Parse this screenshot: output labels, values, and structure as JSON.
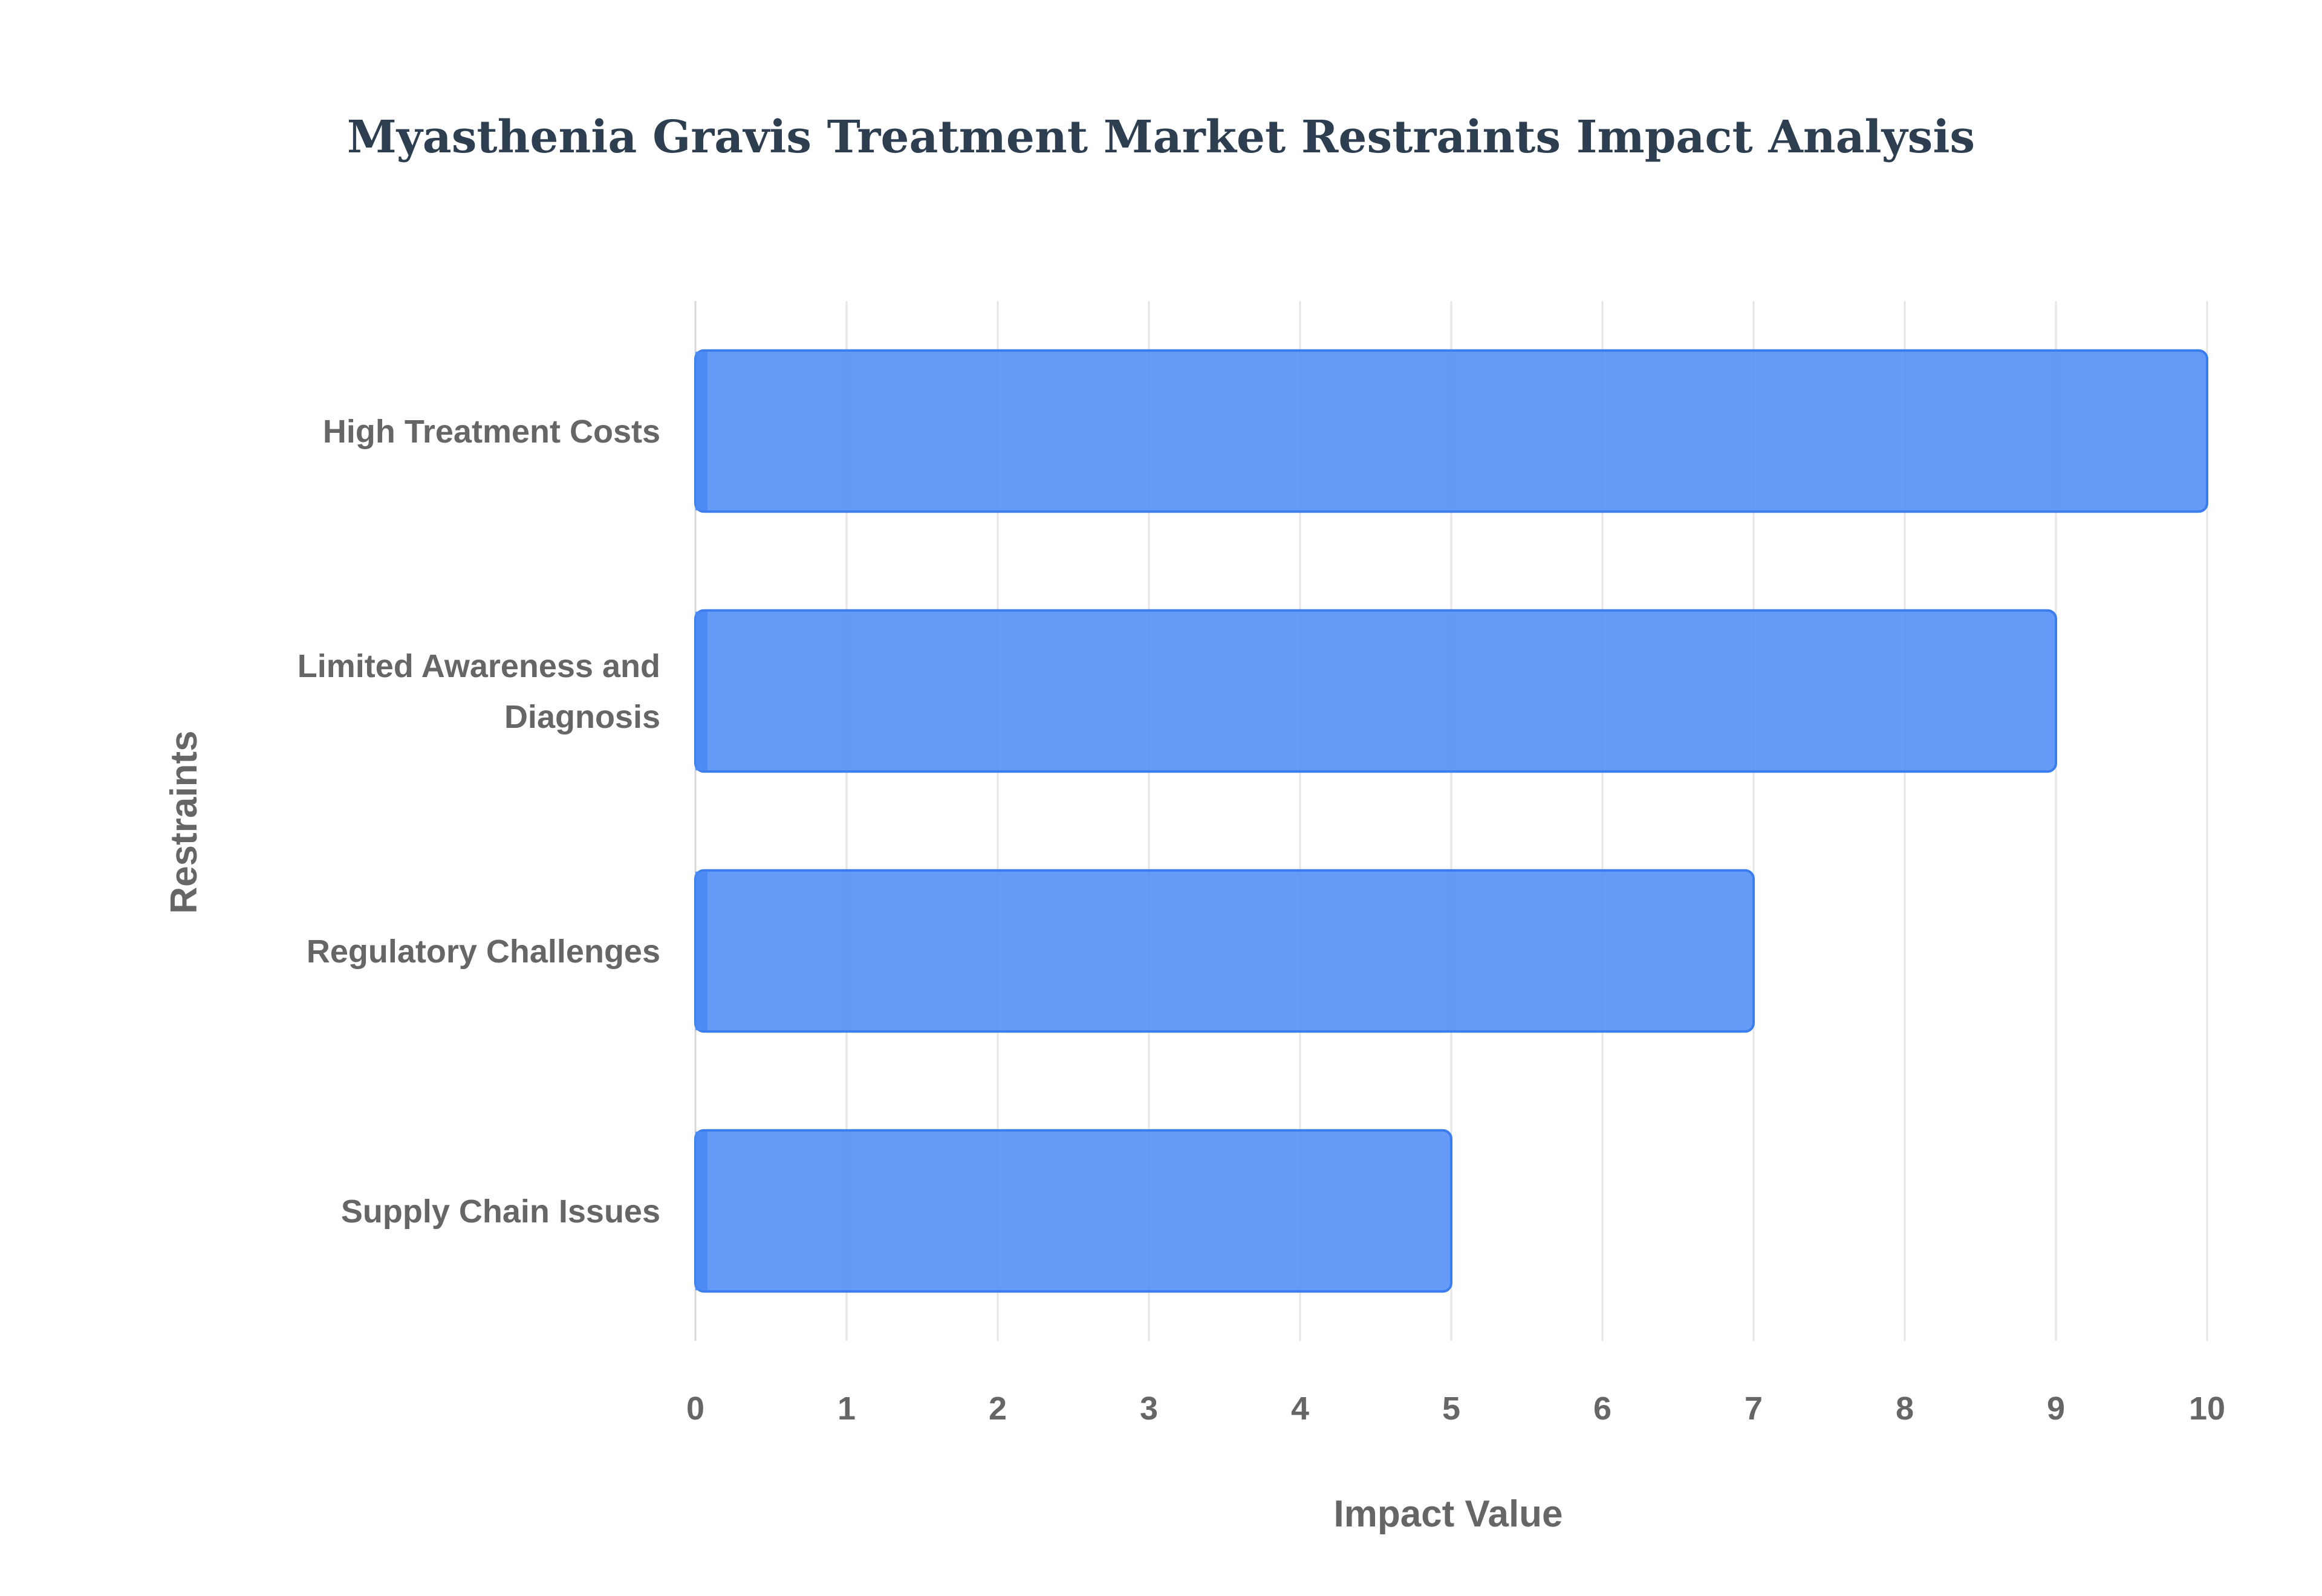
{
  "chart_data": {
    "type": "bar",
    "orientation": "horizontal",
    "title": "Myasthenia Gravis Treatment Market Restraints Impact Analysis",
    "xlabel": "Impact Value",
    "ylabel": "Restraints",
    "categories": [
      [
        "High Treatment Costs"
      ],
      [
        "Limited Awareness and",
        "Diagnosis"
      ],
      [
        "Regulatory Challenges"
      ],
      [
        "Supply Chain Issues"
      ]
    ],
    "values": [
      10,
      9,
      7,
      5
    ],
    "xlim": [
      0,
      10
    ],
    "xticks": [
      "0",
      "1",
      "2",
      "3",
      "4",
      "5",
      "6",
      "7",
      "8",
      "9",
      "10"
    ],
    "grid": true,
    "legend": "none",
    "colors": {
      "bar_fill": "#4a8af4",
      "bar_stroke": "#3b7ded",
      "title": "#2c3e50",
      "text": "#666666"
    }
  }
}
